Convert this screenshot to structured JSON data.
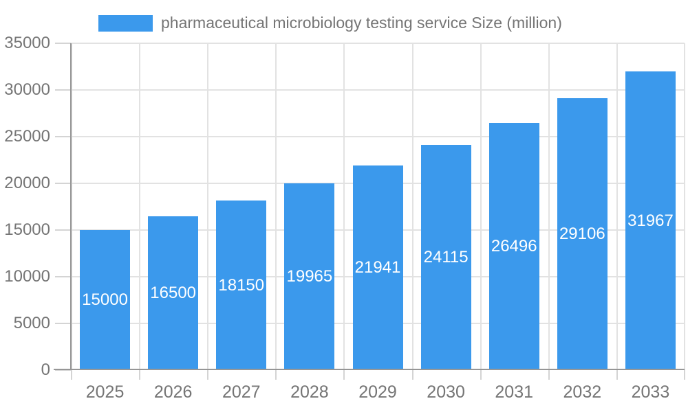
{
  "legend": {
    "label": "pharmaceutical microbiology testing service Size (million)"
  },
  "chart_data": {
    "type": "bar",
    "title": "",
    "categories": [
      "2025",
      "2026",
      "2027",
      "2028",
      "2029",
      "2030",
      "2031",
      "2032",
      "2033"
    ],
    "series": [
      {
        "name": "pharmaceutical microbiology testing service Size (million)",
        "values": [
          15000,
          16500,
          18150,
          19965,
          21941,
          24115,
          26496,
          29106,
          31967
        ]
      }
    ],
    "value_labels": [
      "15000",
      "16500",
      "18150",
      "19965",
      "21941",
      "24115",
      "26496",
      "29106",
      "31967"
    ],
    "xlabel": "",
    "ylabel": "",
    "ylim": [
      0,
      35000
    ],
    "ytick_step": 5000,
    "ytick_labels": [
      "0",
      "5000",
      "10000",
      "15000",
      "20000",
      "25000",
      "30000",
      "35000"
    ],
    "grid": true,
    "legend_position": "top",
    "value_label_position": "inside-center",
    "colors": {
      "bar": "#3B99EC",
      "value_label": "#FFFFFF",
      "axis_text": "#757575",
      "legend_text": "#757575",
      "gridline": "#E2E2E2",
      "tick": "#D4D4D4",
      "axis_line": "#969696",
      "background": "#FFFFFF"
    }
  }
}
